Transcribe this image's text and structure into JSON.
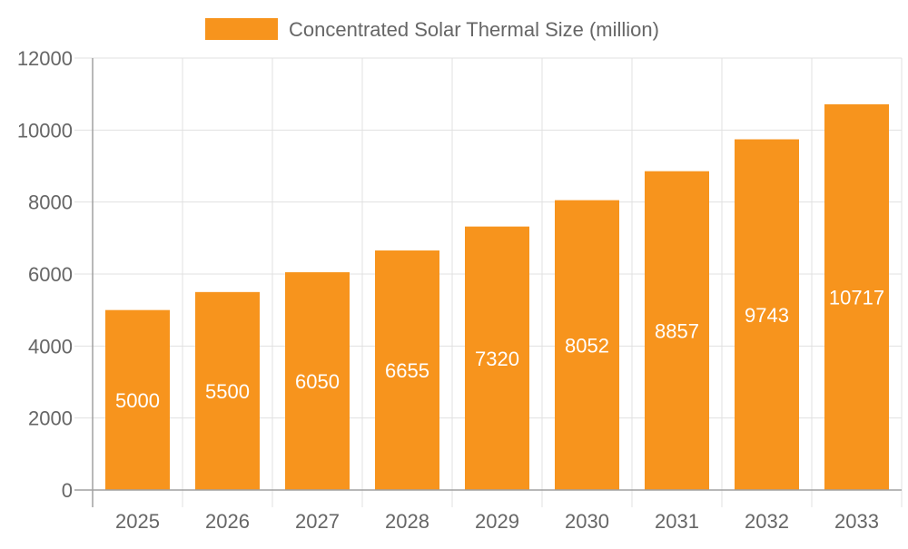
{
  "chart_data": {
    "type": "bar",
    "title": "",
    "xlabel": "",
    "ylabel": "",
    "legend": {
      "position": "top",
      "entries": [
        "Concentrated Solar Thermal Size (million)"
      ]
    },
    "categories": [
      "2025",
      "2026",
      "2027",
      "2028",
      "2029",
      "2030",
      "2031",
      "2032",
      "2033"
    ],
    "series": [
      {
        "name": "Concentrated Solar Thermal Size (million)",
        "values": [
          5000,
          5500,
          6050,
          6655,
          7320,
          8052,
          8857,
          9743,
          10717
        ],
        "color": "#f7941d"
      }
    ],
    "ylim": [
      0,
      12000
    ],
    "yticks": [
      0,
      2000,
      4000,
      6000,
      8000,
      10000,
      12000
    ],
    "grid": true,
    "data_labels": true,
    "colors": {
      "bar": "#f7941d",
      "grid": "#e0e0e0",
      "axis": "#a0a0a0",
      "text": "#666666",
      "label": "#ffffff"
    }
  }
}
